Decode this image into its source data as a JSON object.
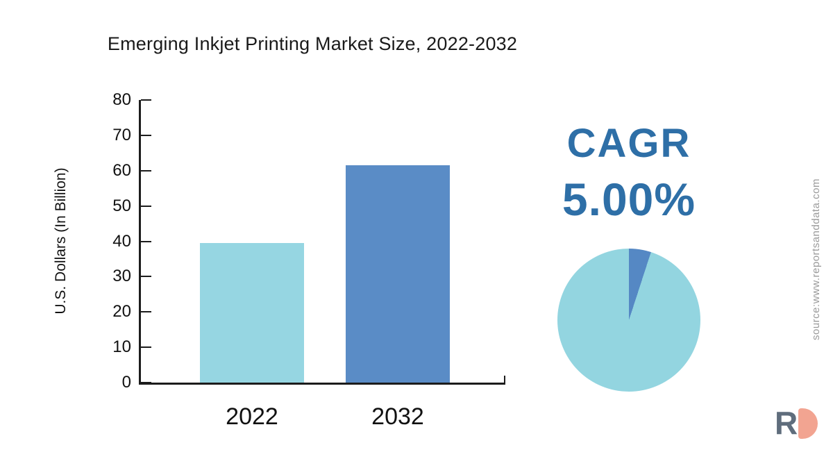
{
  "chart_data": {
    "type": "bar",
    "title": "Emerging Inkjet Printing Market Size, 2022-2032",
    "categories": [
      "2022",
      "2032"
    ],
    "values": [
      39.5,
      61.5
    ],
    "bar_colors": [
      "#96d6e2",
      "#5a8cc6"
    ],
    "xlabel": "",
    "ylabel": "U.S. Dollars (In Billion)",
    "ylim": [
      0,
      80
    ],
    "yticks": [
      0,
      10,
      20,
      30,
      40,
      50,
      60,
      70,
      80
    ],
    "grid": false,
    "legend": "none"
  },
  "cagr": {
    "label": "CAGR",
    "value": "5.00%",
    "percent": 5,
    "text_color": "#2e6fa7",
    "pie": {
      "type": "pie",
      "slices": [
        {
          "name": "cagr-wedge",
          "value": 5,
          "color": "#5588c4"
        },
        {
          "name": "remainder",
          "value": 95,
          "color": "#93d5e0"
        }
      ]
    }
  },
  "source_text": "source:www.reportsanddata.com",
  "logo": {
    "letter": "R",
    "r_color": "#5f6d7c",
    "d_color": "#f2a491"
  },
  "colors": {
    "axis": "#1c1c1c",
    "title_text": "#1a1a1a",
    "background": "#ffffff"
  }
}
